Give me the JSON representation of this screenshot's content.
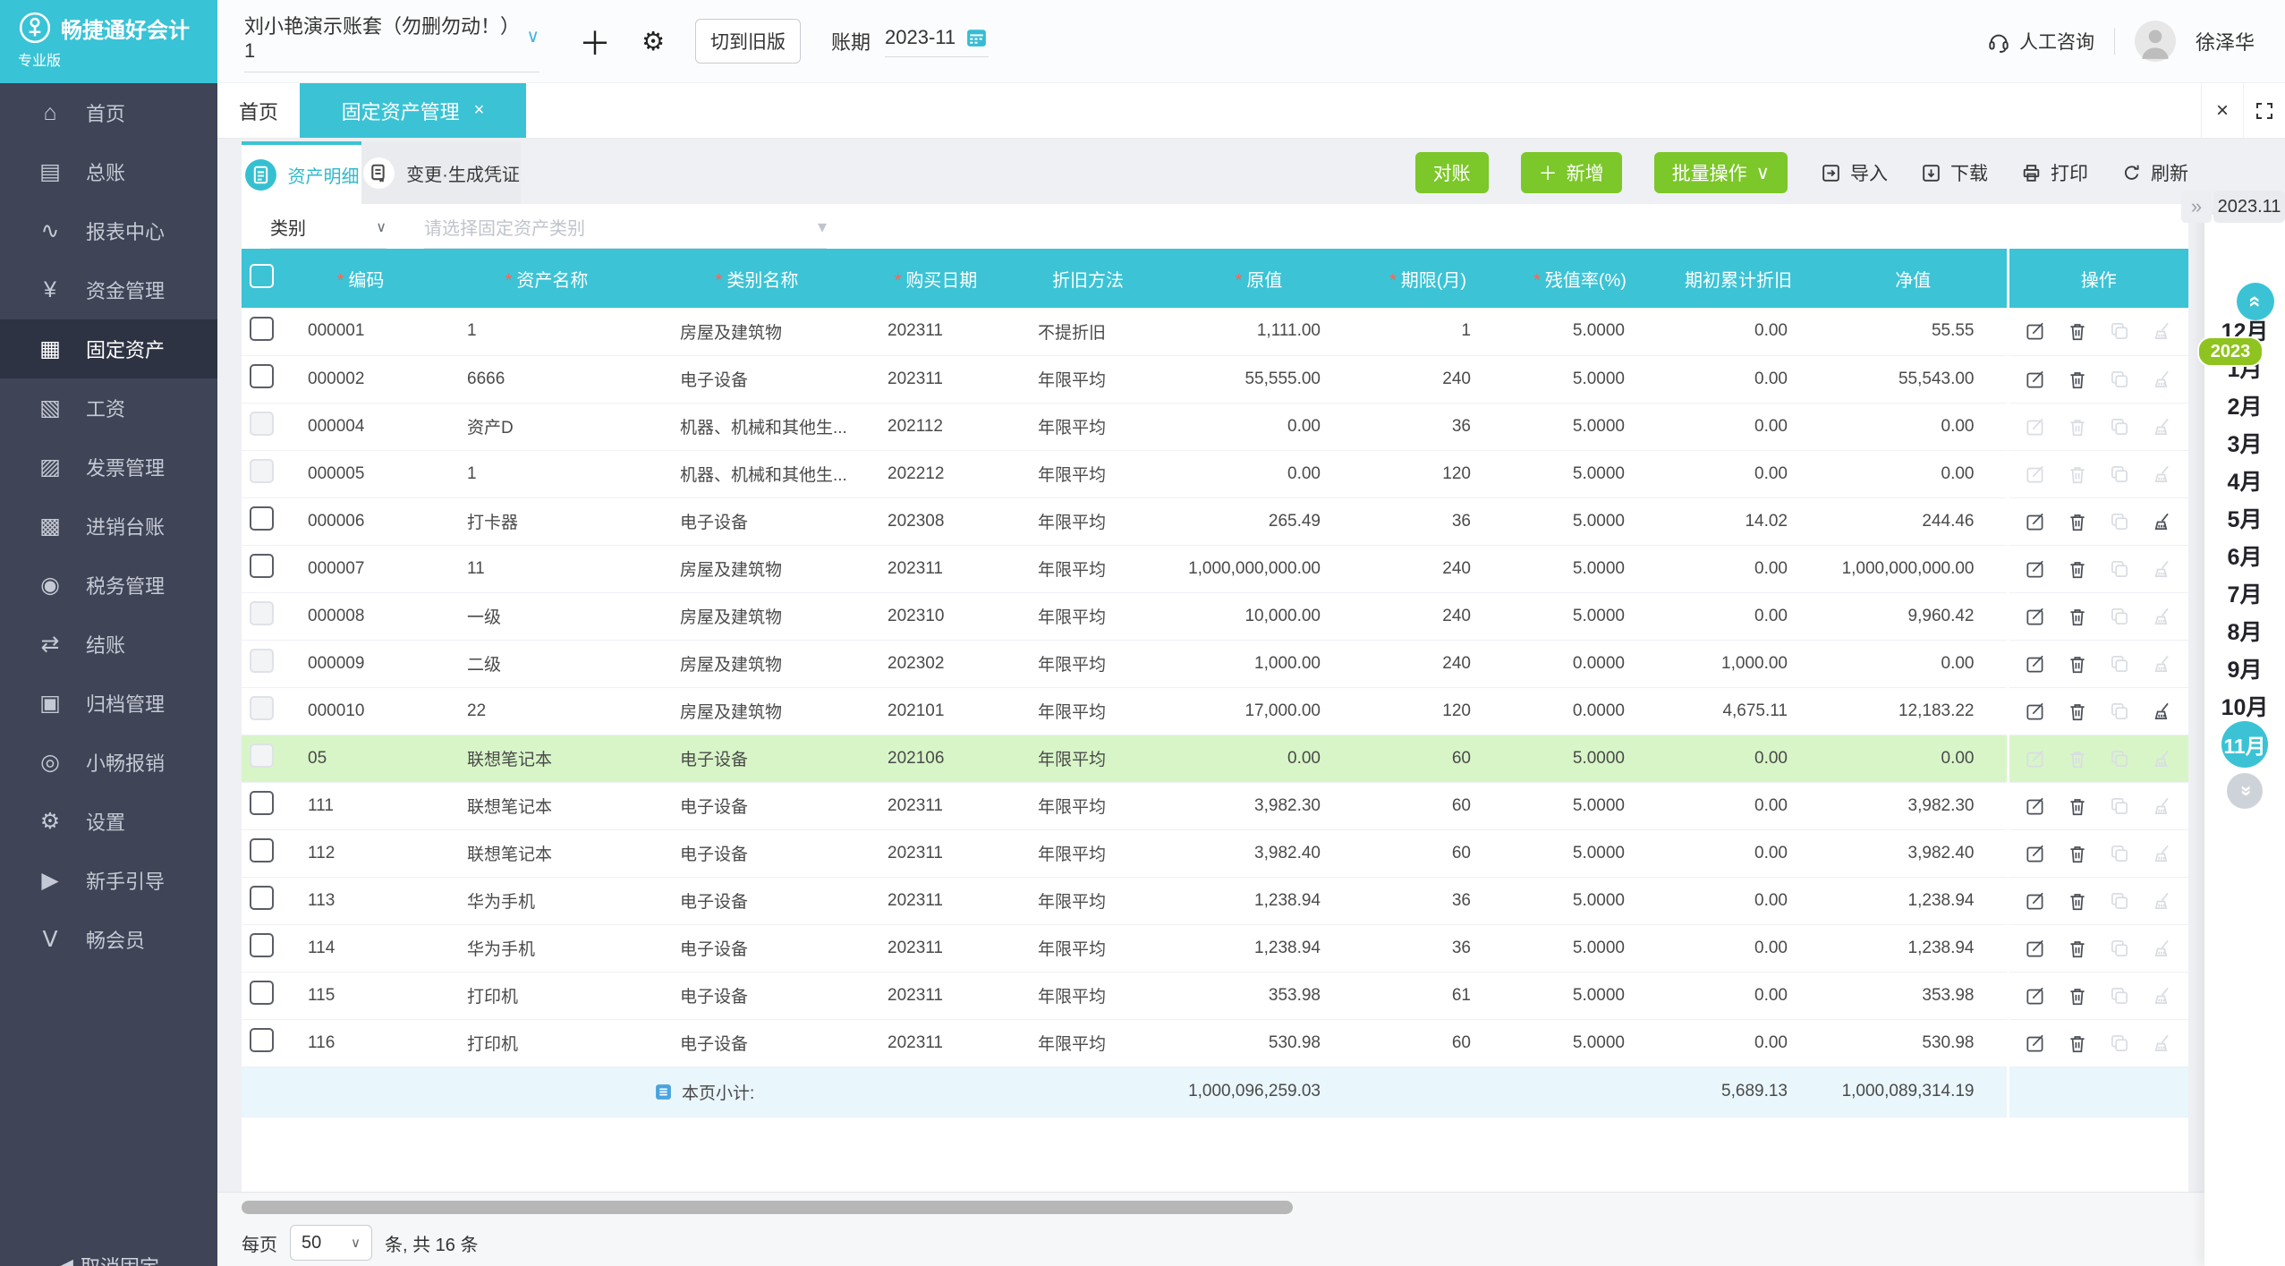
{
  "brand": {
    "name": "畅捷通好会计",
    "edition": "专业版"
  },
  "header": {
    "account_set": "刘小艳演示账套（勿删勿动！）1",
    "switch_old": "切到旧版",
    "period_label": "账期",
    "period_value": "2023-11",
    "support": "人工咨询",
    "username": "徐泽华"
  },
  "sidebar": {
    "items": [
      {
        "label": "首页",
        "icon": "home",
        "active": false
      },
      {
        "label": "总账",
        "icon": "ledger",
        "active": false
      },
      {
        "label": "报表中心",
        "icon": "report",
        "active": false
      },
      {
        "label": "资金管理",
        "icon": "funds",
        "active": false
      },
      {
        "label": "固定资产",
        "icon": "fixed-assets",
        "active": true
      },
      {
        "label": "工资",
        "icon": "salary",
        "active": false
      },
      {
        "label": "发票管理",
        "icon": "invoice",
        "active": false
      },
      {
        "label": "进销台账",
        "icon": "purchase-sale",
        "active": false
      },
      {
        "label": "税务管理",
        "icon": "tax",
        "active": false
      },
      {
        "label": "结账",
        "icon": "closing",
        "active": false
      },
      {
        "label": "归档管理",
        "icon": "archive",
        "active": false
      },
      {
        "label": "小畅报销",
        "icon": "reimburse",
        "active": false
      },
      {
        "label": "设置",
        "icon": "settings",
        "active": false
      },
      {
        "label": "新手引导",
        "icon": "guide",
        "active": false
      },
      {
        "label": "畅会员",
        "icon": "member",
        "active": false
      }
    ],
    "pin_label": "取消固定"
  },
  "tabs": [
    {
      "label": "首页",
      "active": false
    },
    {
      "label": "固定资产管理",
      "active": true,
      "close": "×"
    }
  ],
  "subtabs": [
    {
      "label": "资产明细",
      "active": true
    },
    {
      "label": "变更·生成凭证",
      "active": false
    }
  ],
  "toolbar": {
    "reconcile": "对账",
    "add": "新增",
    "batch": "批量操作",
    "import": "导入",
    "download": "下载",
    "print": "打印",
    "refresh": "刷新"
  },
  "filter": {
    "category_label": "类别",
    "category_placeholder": "请选择固定资产类别"
  },
  "table": {
    "columns": [
      {
        "key": "code",
        "label": "编码",
        "required": true
      },
      {
        "key": "name",
        "label": "资产名称",
        "required": true
      },
      {
        "key": "category",
        "label": "类别名称",
        "required": true
      },
      {
        "key": "purchase_date",
        "label": "购买日期",
        "required": true
      },
      {
        "key": "method",
        "label": "折旧方法",
        "required": false
      },
      {
        "key": "original_value",
        "label": "原值",
        "required": true,
        "numeric": true
      },
      {
        "key": "period_months",
        "label": "期限(月)",
        "required": true,
        "numeric": true
      },
      {
        "key": "residual_rate",
        "label": "残值率(%)",
        "required": true,
        "numeric": true
      },
      {
        "key": "initial_depreciation",
        "label": "期初累计折旧",
        "required": false,
        "numeric": true
      },
      {
        "key": "net_value",
        "label": "净值",
        "required": false,
        "numeric": true
      },
      {
        "key": "actions",
        "label": "操作",
        "required": false
      }
    ],
    "rows": [
      {
        "code": "000001",
        "name": "1",
        "category": "房屋及建筑物",
        "purchase_date": "202311",
        "method": "不提折旧",
        "original_value": "1,111.00",
        "period_months": "1",
        "residual_rate": "5.0000",
        "initial_depreciation": "0.00",
        "net_value": "55.55"
      },
      {
        "code": "000002",
        "name": "6666",
        "category": "电子设备",
        "purchase_date": "202311",
        "method": "年限平均",
        "original_value": "55,555.00",
        "period_months": "240",
        "residual_rate": "5.0000",
        "initial_depreciation": "0.00",
        "net_value": "55,543.00"
      },
      {
        "code": "000004",
        "name": "资产D",
        "category": "机器、机械和其他生...",
        "purchase_date": "202112",
        "method": "年限平均",
        "original_value": "0.00",
        "period_months": "36",
        "residual_rate": "5.0000",
        "initial_depreciation": "0.00",
        "net_value": "0.00",
        "checkbox_disabled": true,
        "actions_disabled": true
      },
      {
        "code": "000005",
        "name": "1",
        "category": "机器、机械和其他生...",
        "purchase_date": "202212",
        "method": "年限平均",
        "original_value": "0.00",
        "period_months": "120",
        "residual_rate": "5.0000",
        "initial_depreciation": "0.00",
        "net_value": "0.00",
        "checkbox_disabled": true,
        "actions_disabled": true
      },
      {
        "code": "000006",
        "name": "打卡器",
        "category": "电子设备",
        "purchase_date": "202308",
        "method": "年限平均",
        "original_value": "265.49",
        "period_months": "36",
        "residual_rate": "5.0000",
        "initial_depreciation": "14.02",
        "net_value": "244.46",
        "brush_enabled": true
      },
      {
        "code": "000007",
        "name": "11",
        "category": "房屋及建筑物",
        "purchase_date": "202311",
        "method": "年限平均",
        "original_value": "1,000,000,000.00",
        "period_months": "240",
        "residual_rate": "5.0000",
        "initial_depreciation": "0.00",
        "net_value": "1,000,000,000.00"
      },
      {
        "code": "000008",
        "name": "一级",
        "category": "房屋及建筑物",
        "purchase_date": "202310",
        "method": "年限平均",
        "original_value": "10,000.00",
        "period_months": "240",
        "residual_rate": "5.0000",
        "initial_depreciation": "0.00",
        "net_value": "9,960.42",
        "checkbox_disabled": true
      },
      {
        "code": "000009",
        "name": "二级",
        "category": "房屋及建筑物",
        "purchase_date": "202302",
        "method": "年限平均",
        "original_value": "1,000.00",
        "period_months": "240",
        "residual_rate": "0.0000",
        "initial_depreciation": "1,000.00",
        "net_value": "0.00",
        "checkbox_disabled": true
      },
      {
        "code": "000010",
        "name": "22",
        "category": "房屋及建筑物",
        "purchase_date": "202101",
        "method": "年限平均",
        "original_value": "17,000.00",
        "period_months": "120",
        "residual_rate": "0.0000",
        "initial_depreciation": "4,675.11",
        "net_value": "12,183.22",
        "checkbox_disabled": true,
        "brush_enabled": true
      },
      {
        "code": "05",
        "name": "联想笔记本",
        "category": "电子设备",
        "purchase_date": "202106",
        "method": "年限平均",
        "original_value": "0.00",
        "period_months": "60",
        "residual_rate": "5.0000",
        "initial_depreciation": "0.00",
        "net_value": "0.00",
        "checkbox_disabled": true,
        "actions_disabled": true,
        "highlighted": true
      },
      {
        "code": "111",
        "name": "联想笔记本",
        "category": "电子设备",
        "purchase_date": "202311",
        "method": "年限平均",
        "original_value": "3,982.30",
        "period_months": "60",
        "residual_rate": "5.0000",
        "initial_depreciation": "0.00",
        "net_value": "3,982.30"
      },
      {
        "code": "112",
        "name": "联想笔记本",
        "category": "电子设备",
        "purchase_date": "202311",
        "method": "年限平均",
        "original_value": "3,982.40",
        "period_months": "60",
        "residual_rate": "5.0000",
        "initial_depreciation": "0.00",
        "net_value": "3,982.40"
      },
      {
        "code": "113",
        "name": "华为手机",
        "category": "电子设备",
        "purchase_date": "202311",
        "method": "年限平均",
        "original_value": "1,238.94",
        "period_months": "36",
        "residual_rate": "5.0000",
        "initial_depreciation": "0.00",
        "net_value": "1,238.94"
      },
      {
        "code": "114",
        "name": "华为手机",
        "category": "电子设备",
        "purchase_date": "202311",
        "method": "年限平均",
        "original_value": "1,238.94",
        "period_months": "36",
        "residual_rate": "5.0000",
        "initial_depreciation": "0.00",
        "net_value": "1,238.94"
      },
      {
        "code": "115",
        "name": "打印机",
        "category": "电子设备",
        "purchase_date": "202311",
        "method": "年限平均",
        "original_value": "353.98",
        "period_months": "61",
        "residual_rate": "5.0000",
        "initial_depreciation": "0.00",
        "net_value": "353.98"
      },
      {
        "code": "116",
        "name": "打印机",
        "category": "电子设备",
        "purchase_date": "202311",
        "method": "年限平均",
        "original_value": "530.98",
        "period_months": "60",
        "residual_rate": "5.0000",
        "initial_depreciation": "0.00",
        "net_value": "530.98"
      }
    ],
    "summary": {
      "label": "本页小计:",
      "original_value": "1,000,096,259.03",
      "initial_depreciation": "5,689.13",
      "net_value": "1,000,089,314.19"
    }
  },
  "pagination": {
    "prefix": "每页",
    "per_page": "50",
    "suffix": "条, 共 16 条"
  },
  "calendar": {
    "current": "2023.11",
    "year_badge": "2023",
    "months": [
      "12月",
      "1月",
      "2月",
      "3月",
      "4月",
      "5月",
      "6月",
      "7月",
      "8月",
      "9月",
      "10月",
      "11月"
    ],
    "selected": "11月"
  },
  "appearance": {
    "accent_cyan": "#3bc3d5",
    "accent_green": "#7cc729",
    "sidebar_bg": "#3f4456",
    "highlight_row_green": "#d8f5c8",
    "summary_row_blue": "#e9f6fc",
    "required_red": "#ff6352",
    "year_badge_green": "#8fc31f"
  }
}
